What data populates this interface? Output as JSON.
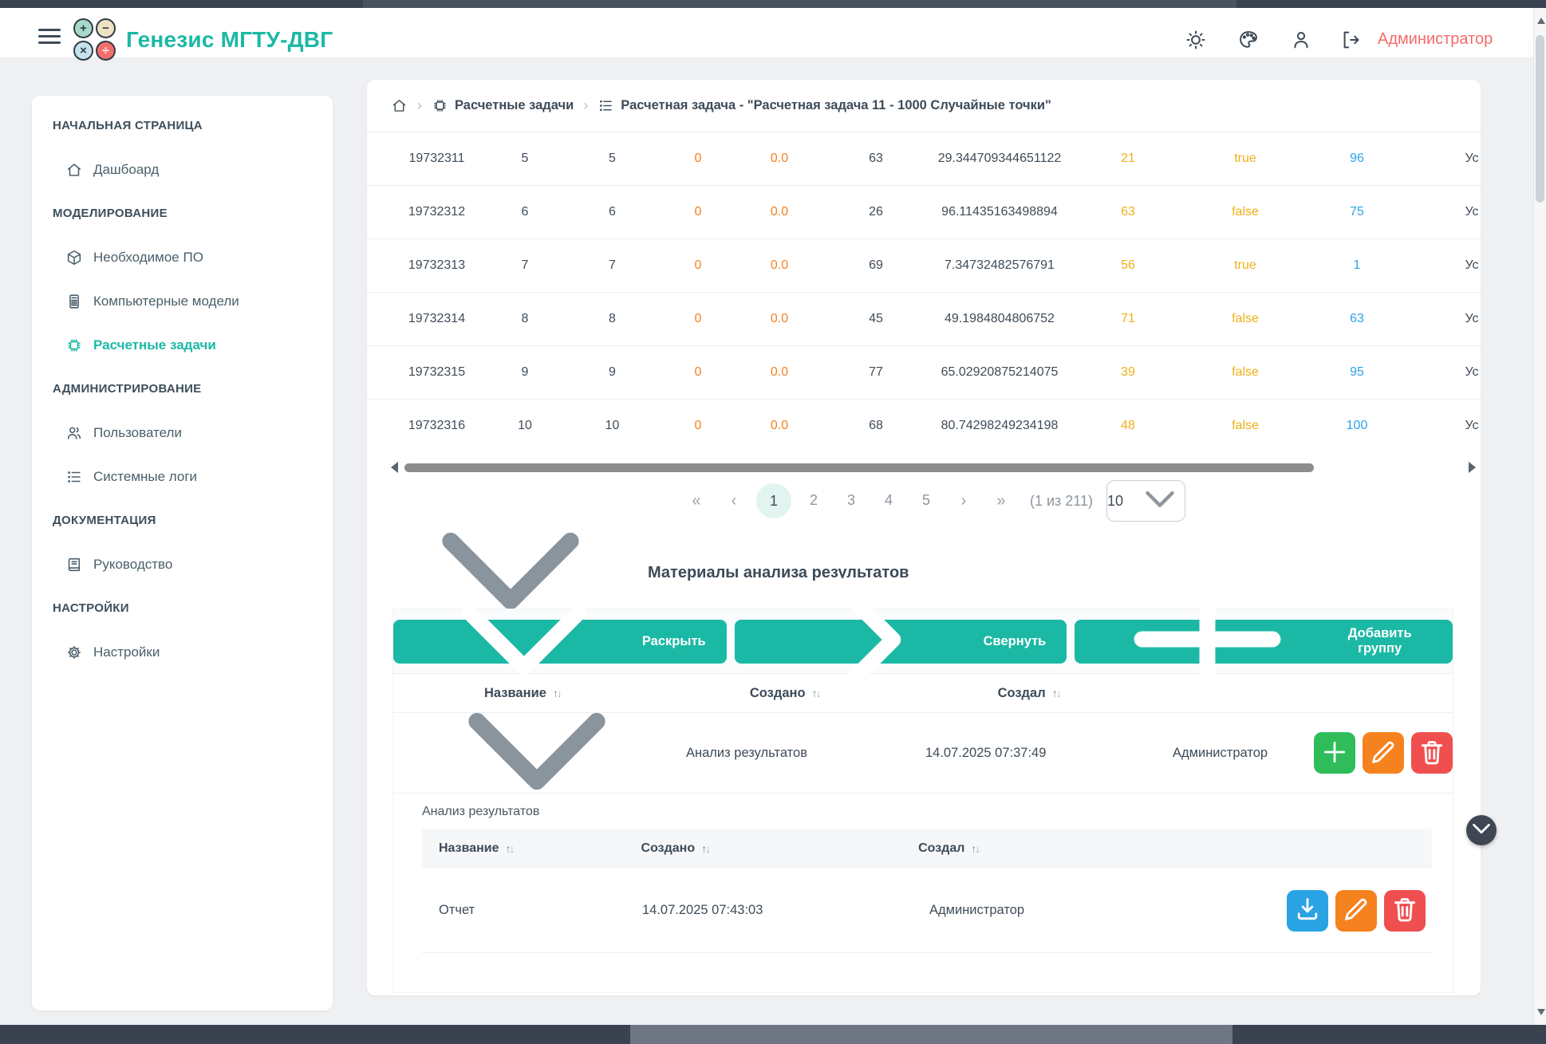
{
  "header": {
    "title": "Генезис МГТУ-ДВГ",
    "user_label": "Администратор",
    "logo_symbols": [
      "+",
      "−",
      "×",
      "÷"
    ],
    "icons": [
      "sun-icon",
      "palette-icon",
      "person-icon",
      "logout-icon"
    ]
  },
  "sidebar": {
    "sections": [
      {
        "title": "НАЧАЛЬНАЯ СТРАНИЦА",
        "items": [
          {
            "label": "Дашбоард",
            "icon": "home",
            "active": false
          }
        ]
      },
      {
        "title": "МОДЕЛИРОВАНИЕ",
        "items": [
          {
            "label": "Необходимое ПО",
            "icon": "package",
            "active": false
          },
          {
            "label": "Компьютерные модели",
            "icon": "calculator",
            "active": false
          },
          {
            "label": "Расчетные задачи",
            "icon": "chip",
            "active": true
          }
        ]
      },
      {
        "title": "АДМИНИСТРИРОВАНИЕ",
        "items": [
          {
            "label": "Пользователи",
            "icon": "users",
            "active": false
          },
          {
            "label": "Системные логи",
            "icon": "list",
            "active": false
          }
        ]
      },
      {
        "title": "ДОКУМЕНТАЦИЯ",
        "items": [
          {
            "label": "Руководство",
            "icon": "book",
            "active": false
          }
        ]
      },
      {
        "title": "НАСТРОЙКИ",
        "items": [
          {
            "label": "Настройки",
            "icon": "gear",
            "active": false
          }
        ]
      }
    ]
  },
  "breadcrumb": {
    "items": [
      "Расчетные задачи",
      "Расчетная задача - \"Расчетная задача 11 - 1000 Случайные точки\""
    ]
  },
  "results_table": {
    "column_colors": [
      "dark",
      "dark",
      "dark",
      "orange",
      "orange",
      "dark",
      "dark",
      "gold",
      "gold",
      "blue",
      "dark"
    ],
    "rows": [
      [
        "19732311",
        "5",
        "5",
        "0",
        "0.0",
        "63",
        "29.344709344651122",
        "21",
        "true",
        "96",
        "Ус"
      ],
      [
        "19732312",
        "6",
        "6",
        "0",
        "0.0",
        "26",
        "96.11435163498894",
        "63",
        "false",
        "75",
        "Ус"
      ],
      [
        "19732313",
        "7",
        "7",
        "0",
        "0.0",
        "69",
        "7.34732482576791",
        "56",
        "true",
        "1",
        "Ус"
      ],
      [
        "19732314",
        "8",
        "8",
        "0",
        "0.0",
        "45",
        "49.1984804806752",
        "71",
        "false",
        "63",
        "Ус"
      ],
      [
        "19732315",
        "9",
        "9",
        "0",
        "0.0",
        "77",
        "65.02920875214075",
        "39",
        "false",
        "95",
        "Ус"
      ],
      [
        "19732316",
        "10",
        "10",
        "0",
        "0.0",
        "68",
        "80.74298249234198",
        "48",
        "false",
        "100",
        "Ус"
      ]
    ]
  },
  "pagination": {
    "first": "«",
    "prev": "‹",
    "pages": [
      "1",
      "2",
      "3",
      "4",
      "5"
    ],
    "active": "1",
    "next": "›",
    "last": "»",
    "info": "(1 из 211)",
    "page_size": "10"
  },
  "materials": {
    "title": "Материалы анализа результатов",
    "buttons": {
      "expand": "Раскрыть",
      "collapse": "Свернуть",
      "add_group": "Добавить группу"
    },
    "table": {
      "headers": [
        "Название",
        "Создано",
        "Создал"
      ],
      "row": {
        "name": "Анализ результатов",
        "created": "14.07.2025 07:37:49",
        "creator": "Администратор"
      }
    },
    "subtable": {
      "label": "Анализ результатов",
      "headers": [
        "Название",
        "Создано",
        "Создал"
      ],
      "row": {
        "name": "Отчет",
        "created": "14.07.2025 07:43:03",
        "creator": "Администратор"
      }
    }
  },
  "colors": {
    "accent_teal": "#1bb9a5",
    "orange": "#f5801f",
    "gold": "#efb018",
    "blue": "#2ba3e8",
    "admin_red": "#f56a6a",
    "green": "#2ebd59",
    "btn_orange": "#f5821f",
    "btn_red": "#f04f4f",
    "btn_blue": "#29a3e3"
  }
}
